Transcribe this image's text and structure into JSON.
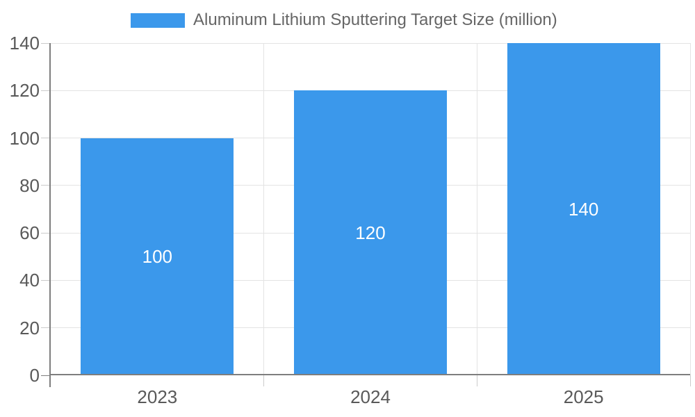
{
  "chart_data": {
    "type": "bar",
    "title": "",
    "legend": "Aluminum Lithium Sputtering Target Size (million)",
    "legend_position": "top",
    "categories": [
      "2023",
      "2024",
      "2025"
    ],
    "values": [
      100,
      120,
      140
    ],
    "bar_labels": [
      "100",
      "120",
      "140"
    ],
    "xlabel": "",
    "ylabel": "",
    "ylim": [
      0,
      140
    ],
    "yticks": [
      0,
      20,
      40,
      60,
      80,
      100,
      120,
      140
    ],
    "grid": true,
    "colors": {
      "bar": "#3B98EB",
      "axis_line": "#7E7E7E",
      "gridline": "#E3E3E3",
      "tick_mark": "#CBCBCB",
      "axis_text": "#595959",
      "legend_text": "#666666",
      "value_label_text": "#FFFFFF",
      "background": "#FFFFFF"
    }
  }
}
